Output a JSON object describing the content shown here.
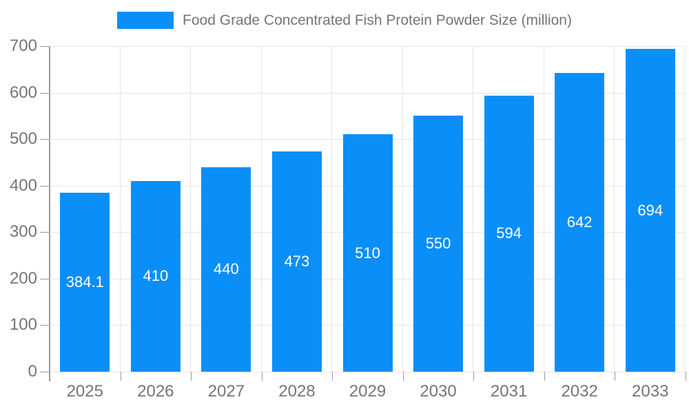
{
  "legend": {
    "label": "Food Grade Concentrated Fish Protein Powder Size (million)"
  },
  "chart_data": {
    "type": "bar",
    "title": "Food Grade Concentrated Fish Protein Powder Size (million)",
    "categories": [
      "2025",
      "2026",
      "2027",
      "2028",
      "2029",
      "2030",
      "2031",
      "2032",
      "2033"
    ],
    "values": [
      384.1,
      410,
      440,
      473,
      510,
      550,
      594,
      642,
      694
    ],
    "value_labels": [
      "384.1",
      "410",
      "440",
      "473",
      "510",
      "550",
      "594",
      "642",
      "694"
    ],
    "xlabel": "",
    "ylabel": "",
    "ylim": [
      0,
      700
    ],
    "y_tick_step": 100,
    "y_tick_labels": [
      "0",
      "100",
      "200",
      "300",
      "400",
      "500",
      "600",
      "700"
    ],
    "grid": true,
    "legend_position": "top-center"
  },
  "colors": {
    "bar": "#0a8ff8",
    "value_label": "#ffffff",
    "axis_text": "#757575",
    "legend_text": "#757575",
    "grid_line": "#e6e6e6",
    "axis_line": "#999999",
    "tick": "#999999",
    "background": "#ffffff"
  }
}
